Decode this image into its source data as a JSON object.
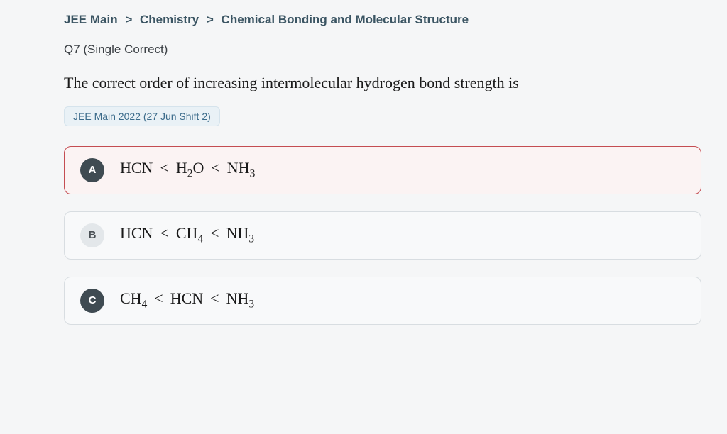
{
  "breadcrumb": {
    "level1": "JEE Main",
    "level2": "Chemistry",
    "level3": "Chemical Bonding and Molecular Structure",
    "sep": ">"
  },
  "question_number": "Q7 (Single Correct)",
  "question_text": "The correct order of increasing intermolecular hydrogen bond strength is",
  "exam_tag": "JEE Main 2022 (27 Jun Shift 2)",
  "lt_symbol": "<",
  "options": {
    "a": {
      "letter": "A",
      "terms": [
        {
          "base": "HCN",
          "sub": ""
        },
        {
          "base": "H",
          "sub": "2",
          "tail": "O"
        },
        {
          "base": "NH",
          "sub": "3"
        }
      ],
      "badge": "dark",
      "selected": true
    },
    "b": {
      "letter": "B",
      "terms": [
        {
          "base": "HCN",
          "sub": ""
        },
        {
          "base": "CH",
          "sub": "4"
        },
        {
          "base": "NH",
          "sub": "3"
        }
      ],
      "badge": "light",
      "selected": false
    },
    "c": {
      "letter": "C",
      "terms": [
        {
          "base": "CH",
          "sub": "4"
        },
        {
          "base": "HCN",
          "sub": ""
        },
        {
          "base": "NH",
          "sub": "3"
        }
      ],
      "badge": "dark",
      "selected": false
    }
  },
  "colors": {
    "page_bg": "#f5f6f7",
    "breadcrumb": "#3b5563",
    "question": "#1a1a1a",
    "chip_bg": "#e9f1f6",
    "chip_fg": "#3a6a8a",
    "option_border": "#d8dde1",
    "option_selected_border": "#c44d52",
    "option_selected_bg": "#fbf3f3",
    "badge_light_bg": "#e3e7ea",
    "badge_light_fg": "#4a5055",
    "badge_dark_bg": "#3f4b52",
    "badge_dark_fg": "#ffffff"
  }
}
